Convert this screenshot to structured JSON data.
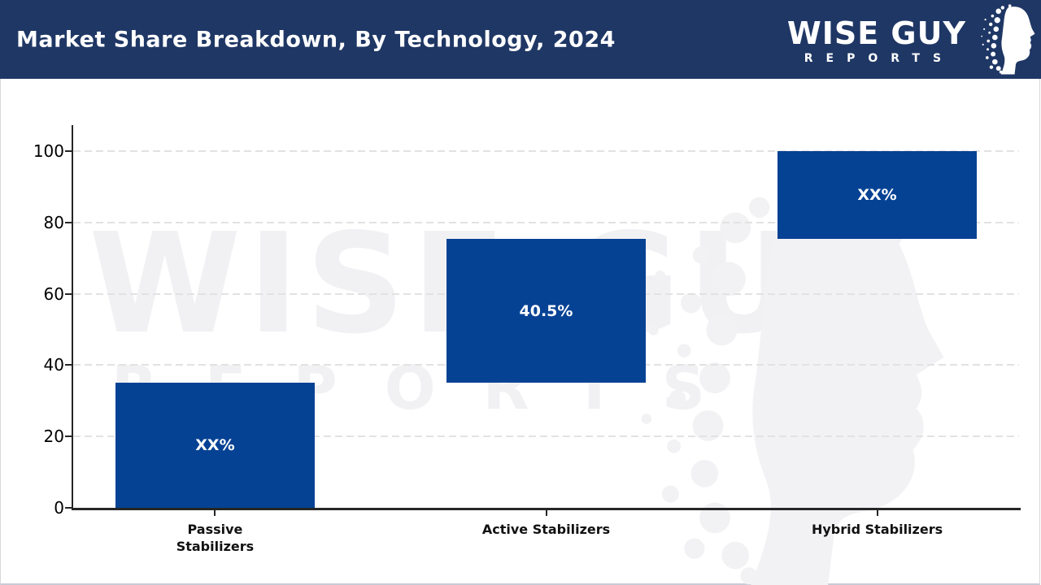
{
  "header": {
    "title": "Market Share Breakdown, By Technology, 2024",
    "logo": {
      "line1": "WISE GUY",
      "line2": "REPORTS"
    }
  },
  "watermark": {
    "line1": "WISE GUY",
    "line2": "REPORTS"
  },
  "chart_data": {
    "type": "bar",
    "subtype": "floating-waterfall",
    "title": "Market Share Breakdown, By Technology, 2024",
    "categories": [
      "Passive Stabilizers",
      "Active Stabilizers",
      "Hybrid Stabilizers"
    ],
    "category_lines": [
      [
        "Passive",
        "Stabilizers"
      ],
      [
        "Active Stabilizers"
      ],
      [
        "Hybrid Stabilizers"
      ]
    ],
    "segments": [
      {
        "category": "Passive Stabilizers",
        "start": 0,
        "end": 35,
        "value": 35,
        "value_label": "XX%"
      },
      {
        "category": "Active Stabilizers",
        "start": 35,
        "end": 75.5,
        "value": 40.5,
        "value_label": "40.5%"
      },
      {
        "category": "Hybrid Stabilizers",
        "start": 75.5,
        "end": 100,
        "value": 24.5,
        "value_label": "XX%"
      }
    ],
    "yticks": [
      0,
      20,
      40,
      60,
      80,
      100
    ],
    "ylim": [
      0,
      105.5
    ],
    "xlabel": "",
    "ylabel": "",
    "grid": "horizontal-dashed",
    "legend": "none"
  },
  "colors": {
    "header_bg": "#1F3765",
    "bar_blue": "#064294",
    "title_text": "#FFFFFF",
    "axis": "#262626",
    "gridline": "#E2E2E2",
    "tick_label": "#000000",
    "bar_label": "#FFFFFF",
    "watermark": "#F1F1F4"
  }
}
